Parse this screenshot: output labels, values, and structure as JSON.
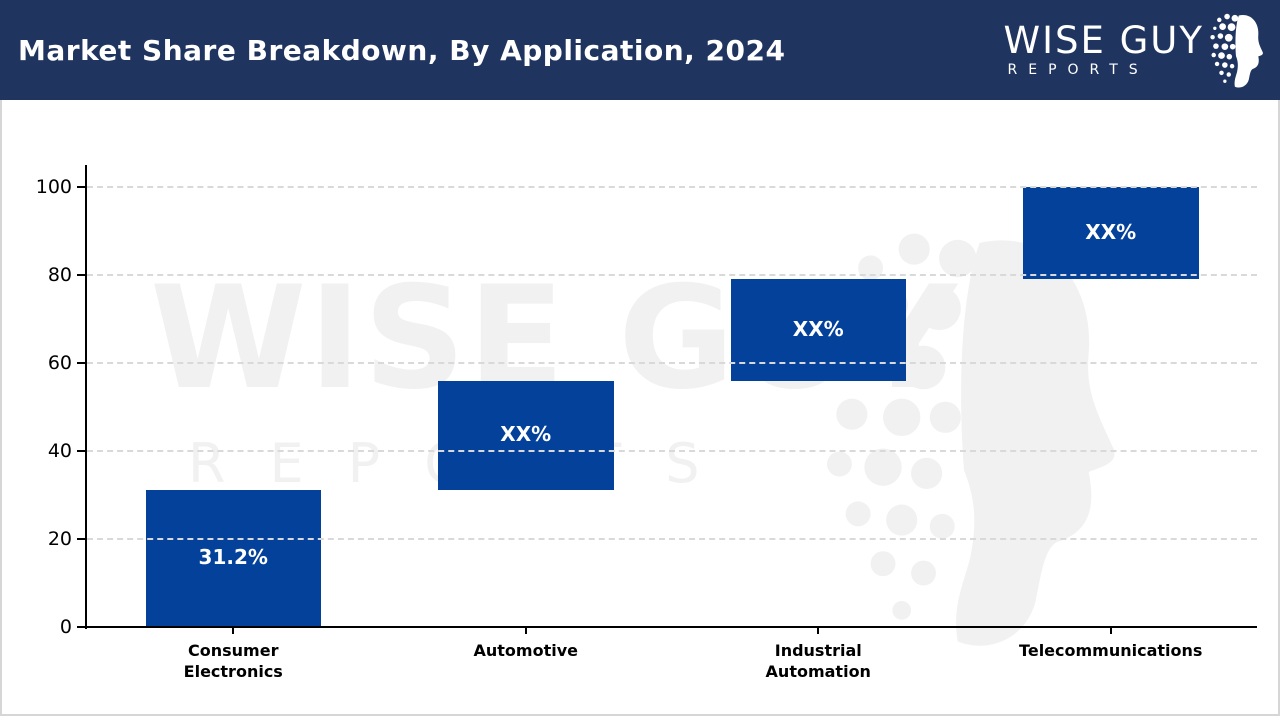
{
  "header": {
    "title": "Market Share Breakdown, By Application, 2024",
    "logo": {
      "line1": "WISE GUY",
      "line2": "REPORTS"
    }
  },
  "watermark": {
    "line1": "WISE GUY",
    "line2": "REPORTS"
  },
  "chart_data": {
    "type": "bar",
    "subtype": "waterfall",
    "title": "Market Share Breakdown, By Application, 2024",
    "categories": [
      "Consumer Electronics",
      "Automotive",
      "Industrial Automation",
      "Telecommunications"
    ],
    "category_lines": [
      [
        "Consumer",
        "Electronics"
      ],
      [
        "Automotive"
      ],
      [
        "Industrial",
        "Automation"
      ],
      [
        "Telecommunications"
      ]
    ],
    "segments": [
      {
        "category": "Consumer Electronics",
        "start": 0,
        "end": 31.2,
        "value": 31.2,
        "label": "31.2%"
      },
      {
        "category": "Automotive",
        "start": 31.2,
        "end": 56.0,
        "value": 24.8,
        "label": "XX%"
      },
      {
        "category": "Industrial Automation",
        "start": 56.0,
        "end": 79.2,
        "value": 23.2,
        "label": "XX%"
      },
      {
        "category": "Telecommunications",
        "start": 79.2,
        "end": 100.0,
        "value": 20.8,
        "label": "XX%"
      }
    ],
    "yticks": [
      0,
      20,
      40,
      60,
      80,
      100
    ],
    "ylim": [
      0,
      105
    ],
    "xlabel": "",
    "ylabel": "",
    "grid": "horizontal-dashed",
    "legend": "none",
    "bar_color": "#04419B",
    "bar_label_color": "#ffffff",
    "grid_color": "#d9d9d9",
    "axis_color": "#000000",
    "header_color": "#203460",
    "watermark_color": "#f1f1f1"
  }
}
